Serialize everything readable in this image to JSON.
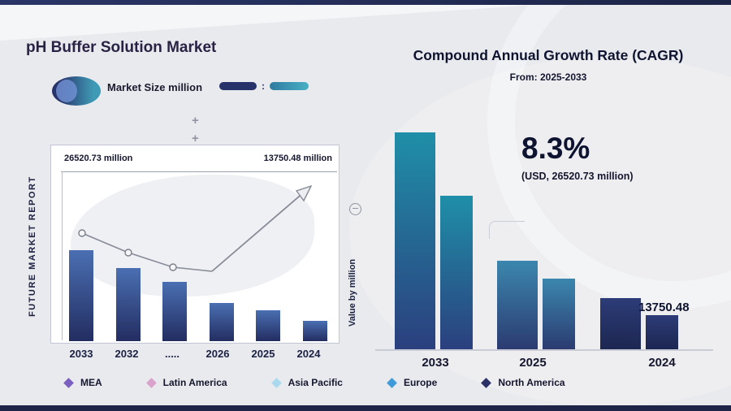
{
  "page": {
    "left": {
      "title": "pH Buffer Solution Market",
      "legend_label": "Market Size million",
      "legend_separator": ":",
      "watermark": "FUTURE MARKET REPORT",
      "chart_top_left_label": "26520.73 million",
      "chart_top_right_label": "13750.48 million",
      "x_labels": [
        "2033",
        "2032",
        ".....",
        "2026",
        "2025",
        "2024"
      ]
    },
    "right": {
      "title": "Compound Annual Growth Rate (CAGR)",
      "subtitle": "From: 2025-2033",
      "cagr": "8.3%",
      "cagr_note": "(USD, 26520.73 million)",
      "y_axis_label": "Value by million",
      "x_labels": [
        "2033",
        "2025",
        "2024"
      ],
      "annotation": "13750.48"
    },
    "footer": {
      "legend": [
        {
          "label": "MEA",
          "color": "#7a5fc0"
        },
        {
          "label": "Latin America",
          "color": "#d9a3cc"
        },
        {
          "label": "Asia Pacific",
          "color": "#a9d9ee"
        },
        {
          "label": "Europe",
          "color": "#3f9ad9"
        },
        {
          "label": "North America",
          "color": "#2a3166"
        }
      ]
    }
  },
  "chart_data": [
    {
      "type": "bar",
      "title": "pH Buffer Solution Market",
      "series_name": "Market Size million",
      "categories": [
        "2033",
        "2032",
        ".....",
        "2026",
        "2025",
        "2024"
      ],
      "values_relative": [
        100,
        80,
        65,
        42,
        34,
        22
      ],
      "labeled_points": {
        "2033": 26520.73,
        "2024": 13750.48
      },
      "unit": "USD million",
      "overlay": "declining marker line from 2033 to 2026 then arrow rising to top-right",
      "bar_gradient": [
        "#4a6fb2",
        "#232d61"
      ]
    },
    {
      "type": "bar",
      "title": "Compound Annual Growth Rate (CAGR)",
      "period": "2025-2033",
      "cagr_percent": 8.3,
      "categories": [
        "2033",
        "2025",
        "2024"
      ],
      "series": [
        {
          "name": "series-1",
          "values_relative": [
            100,
            41,
            24
          ]
        },
        {
          "name": "series-2",
          "values_relative": [
            71,
            33,
            16
          ]
        }
      ],
      "labeled_points": {
        "2033": 26520.73,
        "2024": 13750.48
      },
      "unit": "USD million",
      "ylabel": "Value by million",
      "legend_position": "bottom",
      "group_gradients": [
        [
          "#1f8fa8",
          "#2b3f7e"
        ],
        [
          "#3b87ae",
          "#2b3a70"
        ],
        [
          "#2d3c78",
          "#1c2650"
        ]
      ]
    }
  ]
}
